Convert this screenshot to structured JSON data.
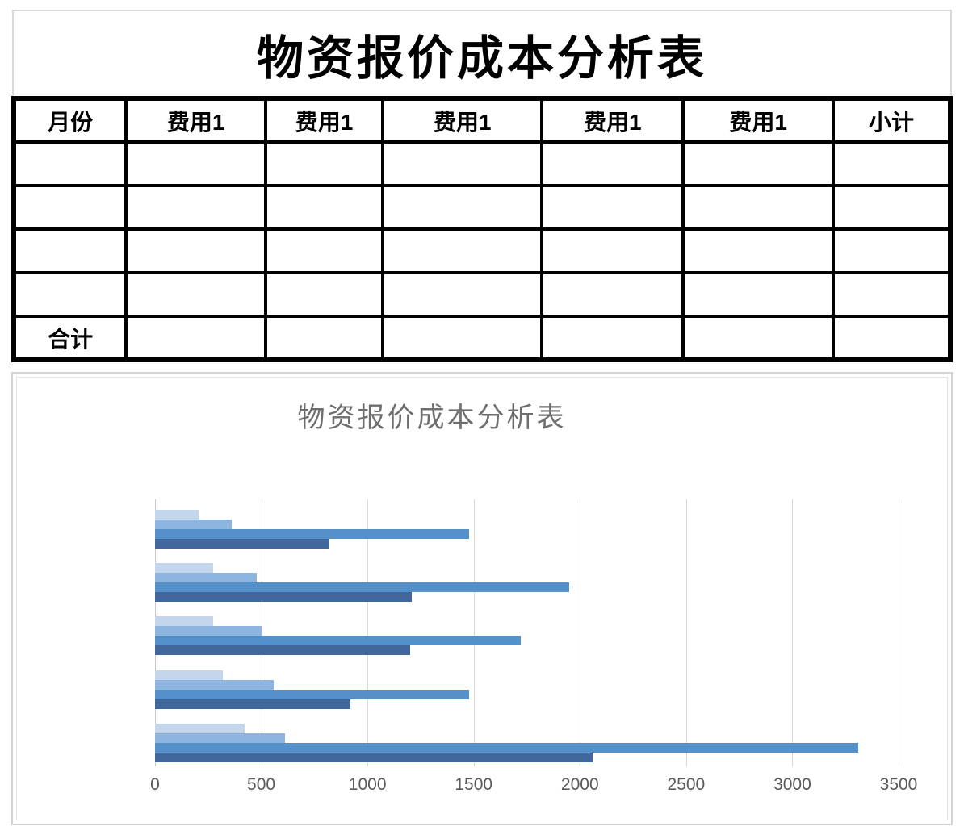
{
  "page": {
    "title": "物资报价成本分析表"
  },
  "table": {
    "headers": [
      "月份",
      "费用1",
      "费用1",
      "费用1",
      "费用1",
      "费用1",
      "小计"
    ],
    "col_widths_pct": [
      12.0,
      14.9,
      12.5,
      17.0,
      15.1,
      16.0,
      12.5
    ],
    "empty_data_rows": 4,
    "footer_label": "合计"
  },
  "chart_data": {
    "type": "bar",
    "orientation": "horizontal",
    "title": "物资报价成本分析表",
    "title_color": "#6e6e6e",
    "xlabel": "",
    "ylabel": "",
    "xlim": [
      0,
      3500
    ],
    "x_ticks": [
      0,
      500,
      1000,
      1500,
      2000,
      2500,
      3000,
      3500
    ],
    "grid": true,
    "legend_position": "none",
    "category_count": 5,
    "series": [
      {
        "name": "bar-lightest",
        "color": "#c3d6ec",
        "values": [
          210,
          275,
          275,
          320,
          420
        ]
      },
      {
        "name": "bar-light",
        "color": "#8eb4e0",
        "values": [
          360,
          480,
          500,
          560,
          610
        ]
      },
      {
        "name": "bar-medium",
        "color": "#5491cb",
        "values": [
          1480,
          1950,
          1720,
          1480,
          3310
        ]
      },
      {
        "name": "bar-dark",
        "color": "#41689d",
        "values": [
          820,
          1210,
          1200,
          920,
          2060
        ]
      }
    ],
    "bar_row_order_top_to_bottom": [
      "bar-lightest",
      "bar-light",
      "bar-medium",
      "bar-dark"
    ],
    "colors": {
      "gridline": "#d9d9d9",
      "axis_label": "#595959"
    }
  }
}
